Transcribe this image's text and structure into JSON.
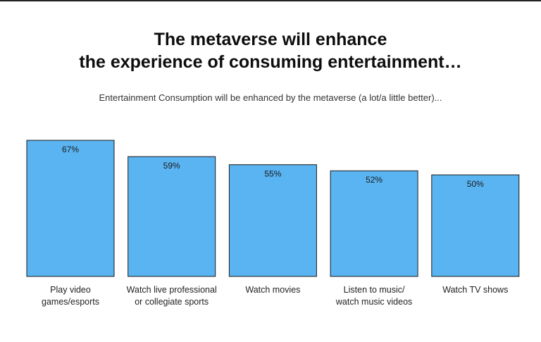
{
  "title_lines": [
    "The metaverse will enhance",
    "the experience of consuming entertainment…"
  ],
  "subtitle": "Entertainment Consumption will be enhanced by the metaverse (a lot/a little better)...",
  "colors": {
    "bar": "#5ab4f2",
    "bar_outline": "#1a1a1a"
  },
  "chart_data": {
    "type": "bar",
    "title": "The metaverse will enhance the experience of consuming entertainment…",
    "subtitle": "Entertainment Consumption will be enhanced by the metaverse (a lot/a little better)...",
    "categories": [
      [
        "Play video",
        "games/esports"
      ],
      [
        "Watch live professional",
        "or collegiate sports"
      ],
      [
        "Watch movies"
      ],
      [
        "Listen to music/",
        "watch music videos"
      ],
      [
        "Watch TV shows"
      ]
    ],
    "values": [
      67,
      59,
      55,
      52,
      50
    ],
    "value_labels": [
      "67%",
      "59%",
      "55%",
      "52%",
      "50%"
    ],
    "unit": "%",
    "ylim": [
      0,
      100
    ],
    "grid": false,
    "legend": "none"
  }
}
